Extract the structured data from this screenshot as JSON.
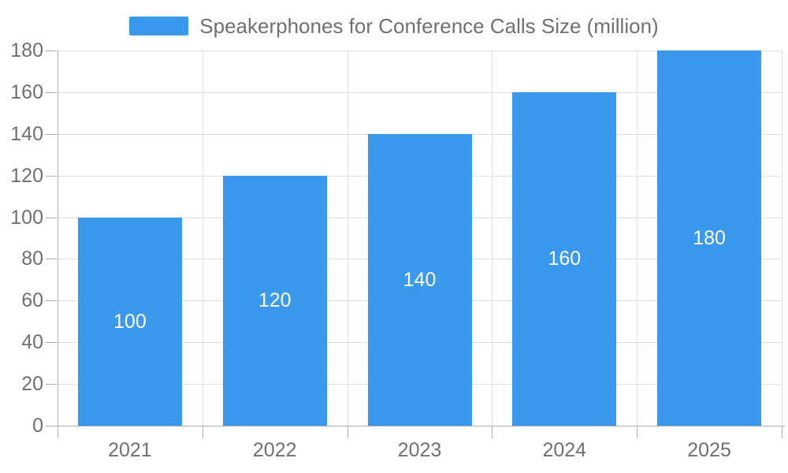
{
  "legend": {
    "label": "Speakerphones for Conference Calls Size (million)"
  },
  "chart_data": {
    "type": "bar",
    "title": "Speakerphones for Conference Calls Size (million)",
    "categories": [
      "2021",
      "2022",
      "2023",
      "2024",
      "2025"
    ],
    "series": [
      {
        "name": "Speakerphones for Conference Calls Size (million)",
        "values": [
          100,
          120,
          140,
          160,
          180
        ]
      }
    ],
    "data_labels": [
      "100",
      "120",
      "140",
      "160",
      "180"
    ],
    "ylabel": "",
    "xlabel": "",
    "ylim": [
      0,
      180
    ],
    "yticks": [
      0,
      20,
      40,
      60,
      80,
      100,
      120,
      140,
      160,
      180
    ],
    "grid": true,
    "legend_position": "top",
    "colors": {
      "bar": "#3A99EC",
      "bar_label": "#ffffff",
      "axis_text": "#707070",
      "gridline": "#e0e0e0",
      "axis_line": "#afafaf",
      "background": "#ffffff"
    }
  }
}
